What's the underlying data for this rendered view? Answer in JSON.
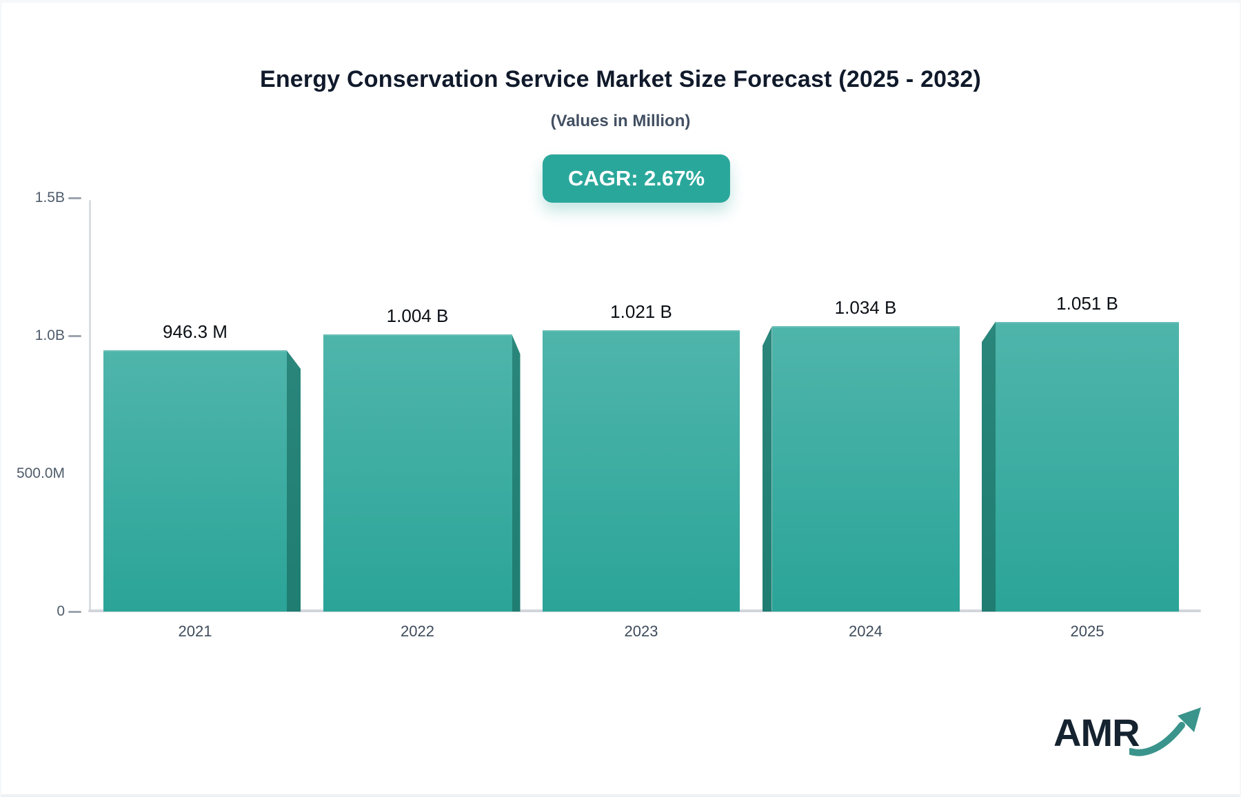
{
  "title": "Energy Conservation Service Market Size Forecast (2025 - 2032)",
  "subtitle": "(Values in Million)",
  "badge": {
    "label": "CAGR: 2.67%"
  },
  "brand": {
    "logo_text": "AMR"
  },
  "colors": {
    "badge_bg": "#2aa79b",
    "bar_gradient_top": "#4fb5ab",
    "bar_gradient_bottom": "#2ba498",
    "bar_bevel_top": "#2a867b",
    "bar_bevel_bottom": "#1f7d71",
    "axis_line": "#d7dade",
    "logo_arrow": "#3a948c"
  },
  "chart_data": {
    "type": "bar",
    "title": "Energy Conservation Service Market Size Forecast (2025 - 2032)",
    "subtitle": "(Values in Million)",
    "unit": "Million",
    "categories": [
      "2021",
      "2022",
      "2023",
      "2024",
      "2025"
    ],
    "values": [
      946.3,
      1004,
      1021,
      1034,
      1051
    ],
    "value_labels": [
      "946.3 M",
      "1.004 B",
      "1.021 B",
      "1.034 B",
      "1.051 B"
    ],
    "ylim": [
      0,
      1500
    ],
    "yticks": [
      {
        "label": "1.5B",
        "value": 1500,
        "dash": true
      },
      {
        "label": "1.0B",
        "value": 1000,
        "dash": true
      },
      {
        "label": "500.0M",
        "value": 500,
        "dash": false
      },
      {
        "label": "0",
        "value": 0,
        "dash": true
      }
    ],
    "grid": false,
    "legend": null,
    "annotation": "CAGR: 2.67%"
  }
}
